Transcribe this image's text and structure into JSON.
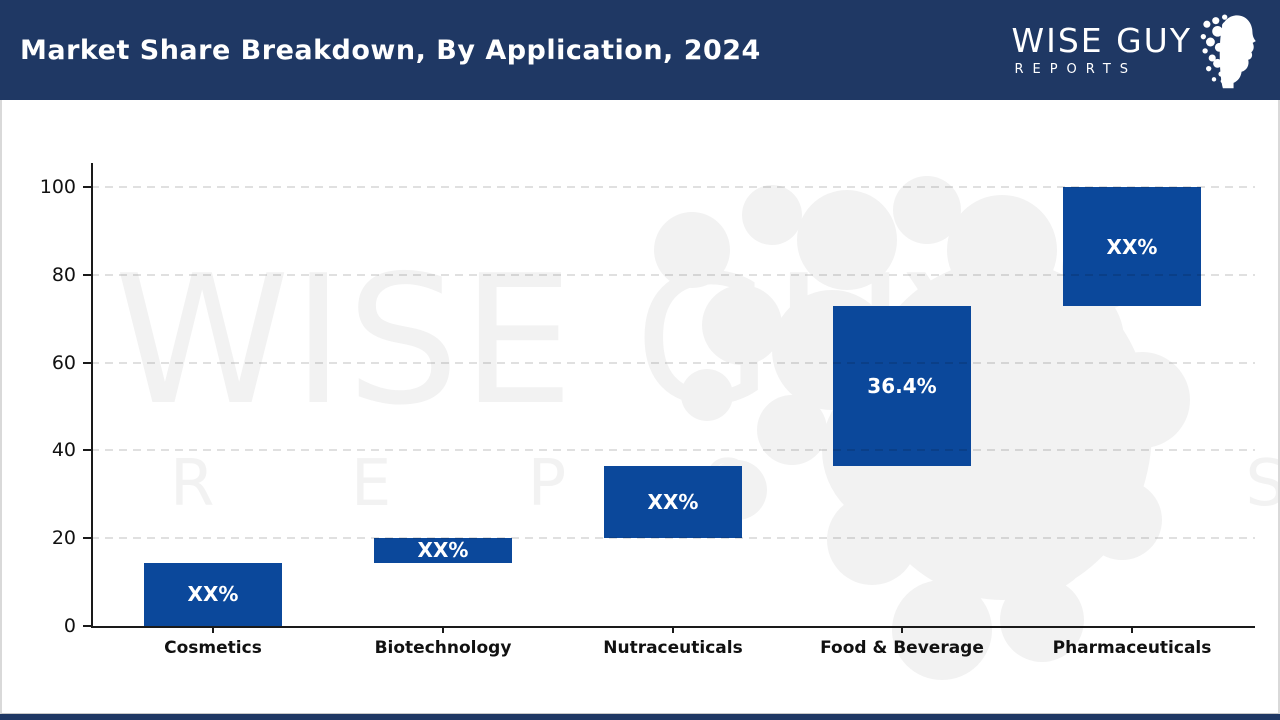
{
  "header": {
    "title": "Market Share Breakdown, By Application, 2024",
    "logo": {
      "name": "WISE GUY",
      "tagline": "REPORTS"
    }
  },
  "watermark": {
    "line1": "WISE GUY",
    "line2": "R E P O R T S"
  },
  "chart_data": {
    "type": "bar",
    "subtype": "waterfall",
    "title": "Market Share Breakdown, By Application, 2024",
    "categories": [
      "Cosmetics",
      "Biotechnology",
      "Nutraceuticals",
      "Food & Beverage",
      "Pharmaceuticals"
    ],
    "segments": [
      {
        "category": "Cosmetics",
        "start": 0,
        "end": 14.4,
        "value_label": "XX%"
      },
      {
        "category": "Biotechnology",
        "start": 14.4,
        "end": 20.0,
        "value_label": "XX%"
      },
      {
        "category": "Nutraceuticals",
        "start": 20.0,
        "end": 36.4,
        "value_label": "XX%"
      },
      {
        "category": "Food & Beverage",
        "start": 36.4,
        "end": 72.8,
        "value_label": "36.4%"
      },
      {
        "category": "Pharmaceuticals",
        "start": 72.8,
        "end": 100,
        "value_label": "XX%"
      }
    ],
    "ylim": [
      0,
      100
    ],
    "yticks": [
      0,
      20,
      40,
      60,
      80,
      100
    ],
    "grid": "horizontal-dashed",
    "legend": "none",
    "bar_color": "#0b489b",
    "bar_label_color": "#ffffff"
  },
  "colors": {
    "header_bg": "#1f3864",
    "footer_bg": "#1f3864",
    "bar": "#0b489b",
    "watermark": "#f2f2f2"
  }
}
